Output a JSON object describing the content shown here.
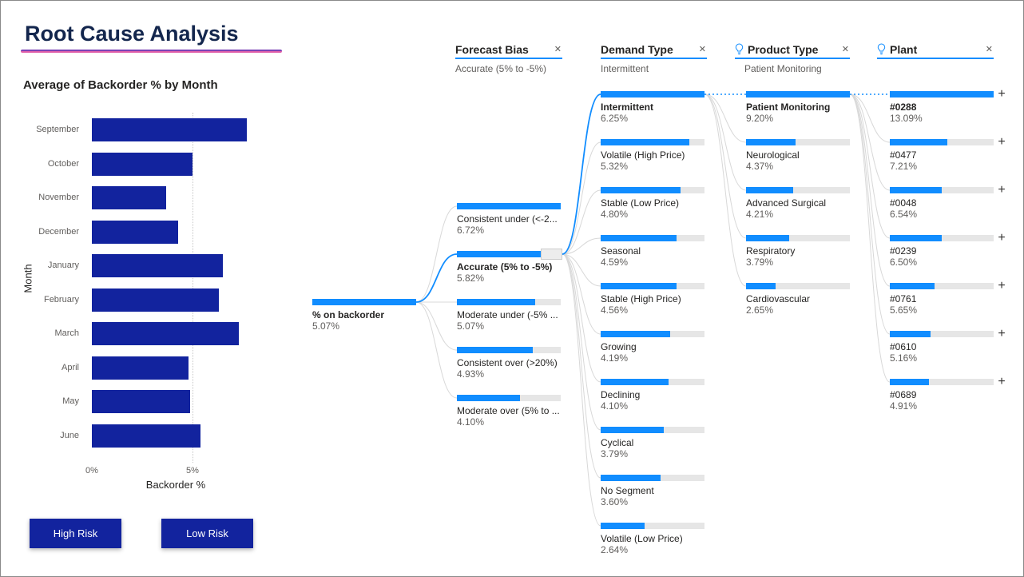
{
  "page": {
    "title": "Root Cause Analysis"
  },
  "buttons": {
    "high_risk": {
      "label": "High Risk"
    },
    "low_risk": {
      "label": "Low Risk"
    }
  },
  "bar_chart": {
    "title": "Average of Backorder % by Month",
    "x_axis_title": "Backorder %",
    "y_axis_title": "Month",
    "x_ticks": [
      "0%",
      "5%"
    ]
  },
  "tree": {
    "root": {
      "label": "% on backorder",
      "value_text": "5.07%",
      "value": 5.07
    },
    "levels": [
      {
        "header": "Forecast Bias",
        "subtitle": "Accurate (5% to -5%)",
        "ai_level": false,
        "selected_index": 1,
        "nodes": [
          {
            "label": "Consistent under (<-2...",
            "value_text": "6.72%",
            "value": 6.72
          },
          {
            "label": "Accurate (5% to -5%)",
            "value_text": "5.82%",
            "value": 5.82
          },
          {
            "label": "Moderate under (-5% ...",
            "value_text": "5.07%",
            "value": 5.07
          },
          {
            "label": "Consistent over (>20%)",
            "value_text": "4.93%",
            "value": 4.93
          },
          {
            "label": "Moderate over (5% to ...",
            "value_text": "4.10%",
            "value": 4.1
          }
        ]
      },
      {
        "header": "Demand Type",
        "subtitle": "Intermittent",
        "ai_level": false,
        "selected_index": 0,
        "nodes": [
          {
            "label": "Intermittent",
            "value_text": "6.25%",
            "value": 6.25
          },
          {
            "label": "Volatile (High Price)",
            "value_text": "5.32%",
            "value": 5.32
          },
          {
            "label": "Stable (Low Price)",
            "value_text": "4.80%",
            "value": 4.8
          },
          {
            "label": "Seasonal",
            "value_text": "4.59%",
            "value": 4.59
          },
          {
            "label": "Stable (High Price)",
            "value_text": "4.56%",
            "value": 4.56
          },
          {
            "label": "Growing",
            "value_text": "4.19%",
            "value": 4.19
          },
          {
            "label": "Declining",
            "value_text": "4.10%",
            "value": 4.1
          },
          {
            "label": "Cyclical",
            "value_text": "3.79%",
            "value": 3.79
          },
          {
            "label": "No Segment",
            "value_text": "3.60%",
            "value": 3.6
          },
          {
            "label": "Volatile (Low Price)",
            "value_text": "2.64%",
            "value": 2.64
          }
        ]
      },
      {
        "header": "Product Type",
        "subtitle": "Patient Monitoring",
        "ai_level": true,
        "selected_index": 0,
        "nodes": [
          {
            "label": "Patient Monitoring",
            "value_text": "9.20%",
            "value": 9.2
          },
          {
            "label": "Neurological",
            "value_text": "4.37%",
            "value": 4.37
          },
          {
            "label": "Advanced Surgical",
            "value_text": "4.21%",
            "value": 4.21
          },
          {
            "label": "Respiratory",
            "value_text": "3.79%",
            "value": 3.79
          },
          {
            "label": "Cardiovascular",
            "value_text": "2.65%",
            "value": 2.65
          }
        ]
      },
      {
        "header": "Plant",
        "subtitle": "",
        "ai_level": true,
        "selected_index": 0,
        "expandable_nodes": true,
        "nodes": [
          {
            "label": "#0288",
            "value_text": "13.09%",
            "value": 13.09
          },
          {
            "label": "#0477",
            "value_text": "7.21%",
            "value": 7.21
          },
          {
            "label": "#0048",
            "value_text": "6.54%",
            "value": 6.54
          },
          {
            "label": "#0239",
            "value_text": "6.50%",
            "value": 6.5
          },
          {
            "label": "#0761",
            "value_text": "5.65%",
            "value": 5.65
          },
          {
            "label": "#0610",
            "value_text": "5.16%",
            "value": 5.16
          },
          {
            "label": "#0689",
            "value_text": "4.91%",
            "value": 4.91
          }
        ]
      }
    ]
  },
  "icons": {
    "close": "✕",
    "plus": "+"
  },
  "colors": {
    "accent_blue": "#118DFF",
    "navy": "#12239E",
    "track_gray": "#E6E6E6",
    "title_underline": [
      "#7A43B6",
      "#E05FA9"
    ]
  },
  "chart_data": [
    {
      "type": "bar",
      "orientation": "horizontal",
      "title": "Average of Backorder % by Month",
      "xlabel": "Backorder %",
      "ylabel": "Month",
      "unit": "%",
      "xlim": [
        0,
        8
      ],
      "x_ticks_shown": [
        "0%",
        "5%"
      ],
      "gridline_at": 5,
      "categories": [
        "September",
        "October",
        "November",
        "December",
        "January",
        "February",
        "March",
        "April",
        "May",
        "June"
      ],
      "values": [
        7.7,
        5.0,
        3.7,
        4.3,
        6.5,
        6.3,
        7.3,
        4.8,
        4.9,
        5.4
      ]
    },
    {
      "type": "decomposition-tree",
      "measure": "% on backorder",
      "root_value": 5.07,
      "unit": "%",
      "levels": [
        {
          "field": "Forecast Bias",
          "selected": "Accurate (5% to -5%)",
          "ai_suggested": false,
          "categories": [
            "Consistent under (<-2...",
            "Accurate (5% to -5%)",
            "Moderate under (-5% ...",
            "Consistent over (>20%)",
            "Moderate over (5% to ..."
          ],
          "values": [
            6.72,
            5.82,
            5.07,
            4.93,
            4.1
          ]
        },
        {
          "field": "Demand Type",
          "selected": "Intermittent",
          "ai_suggested": false,
          "categories": [
            "Intermittent",
            "Volatile (High Price)",
            "Stable (Low Price)",
            "Seasonal",
            "Stable (High Price)",
            "Growing",
            "Declining",
            "Cyclical",
            "No Segment",
            "Volatile (Low Price)"
          ],
          "values": [
            6.25,
            5.32,
            4.8,
            4.59,
            4.56,
            4.19,
            4.1,
            3.79,
            3.6,
            2.64
          ]
        },
        {
          "field": "Product Type",
          "selected": "Patient Monitoring",
          "ai_suggested": true,
          "categories": [
            "Patient Monitoring",
            "Neurological",
            "Advanced Surgical",
            "Respiratory",
            "Cardiovascular"
          ],
          "values": [
            9.2,
            4.37,
            4.21,
            3.79,
            2.65
          ]
        },
        {
          "field": "Plant",
          "selected": "#0288",
          "ai_suggested": true,
          "categories": [
            "#0288",
            "#0477",
            "#0048",
            "#0239",
            "#0761",
            "#0610",
            "#0689"
          ],
          "values": [
            13.09,
            7.21,
            6.54,
            6.5,
            5.65,
            5.16,
            4.91
          ]
        }
      ]
    }
  ]
}
